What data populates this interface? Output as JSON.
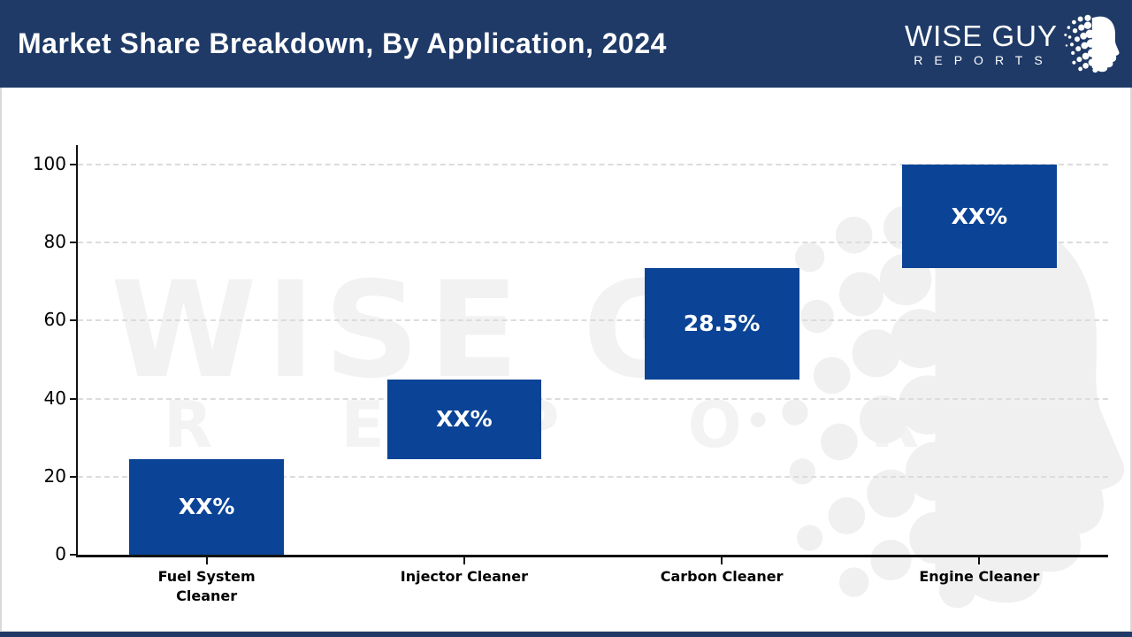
{
  "header": {
    "title": "Market Share Breakdown, By Application, 2024",
    "logo": {
      "line1": "WISE GUY",
      "line2": "REPORTS"
    }
  },
  "watermark": {
    "line1": "WISE GU",
    "line2": "R E P O R T S"
  },
  "chart_data": {
    "type": "bar",
    "variant": "floating-waterfall",
    "title": "Market Share Breakdown, By Application, 2024",
    "categories": [
      "Fuel System Cleaner",
      "Injector Cleaner",
      "Carbon Cleaner",
      "Engine Cleaner"
    ],
    "segments": [
      {
        "category": "Fuel System Cleaner",
        "start": 0,
        "end": 24.5,
        "label": "XX%"
      },
      {
        "category": "Injector Cleaner",
        "start": 24.5,
        "end": 45,
        "label": "XX%"
      },
      {
        "category": "Carbon Cleaner",
        "start": 45,
        "end": 73.5,
        "label": "28.5%"
      },
      {
        "category": "Engine Cleaner",
        "start": 73.5,
        "end": 100,
        "label": "XX%"
      }
    ],
    "yticks": [
      0,
      20,
      40,
      60,
      80,
      100
    ],
    "ylim": [
      0,
      105
    ],
    "xlabel": "",
    "ylabel": "",
    "grid": "horizontal-dashed",
    "legend": "none",
    "bar_color": "#0b4396",
    "bar_label_color": "#ffffff"
  },
  "colors": {
    "header_bg": "#1f3a67",
    "footer_bg": "#1f3a67",
    "bar": "#0b4396",
    "gridline": "#dcdcdc",
    "axis": "#111111",
    "watermark": "#f2f2f2"
  }
}
